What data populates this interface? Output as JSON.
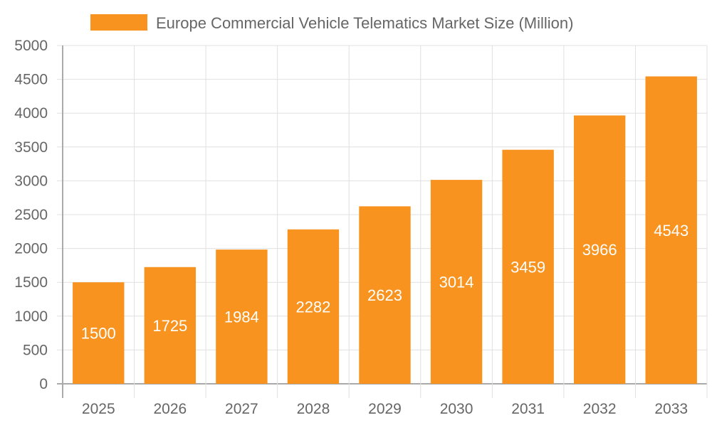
{
  "chart_data": {
    "type": "bar",
    "title": "",
    "xlabel": "",
    "ylabel": "",
    "categories": [
      "2025",
      "2026",
      "2027",
      "2028",
      "2029",
      "2030",
      "2031",
      "2032",
      "2033"
    ],
    "series": [
      {
        "name": "Europe Commercial Vehicle Telematics Market Size (Million)",
        "values": [
          1500,
          1725,
          1984,
          2282,
          2623,
          3014,
          3459,
          3966,
          4543
        ],
        "color": "#F7931E"
      }
    ],
    "ylim": [
      0,
      5000
    ],
    "yticks": [
      0,
      500,
      1000,
      1500,
      2000,
      2500,
      3000,
      3500,
      4000,
      4500,
      5000
    ],
    "grid": true,
    "legend_position": "top",
    "data_labels": true
  }
}
